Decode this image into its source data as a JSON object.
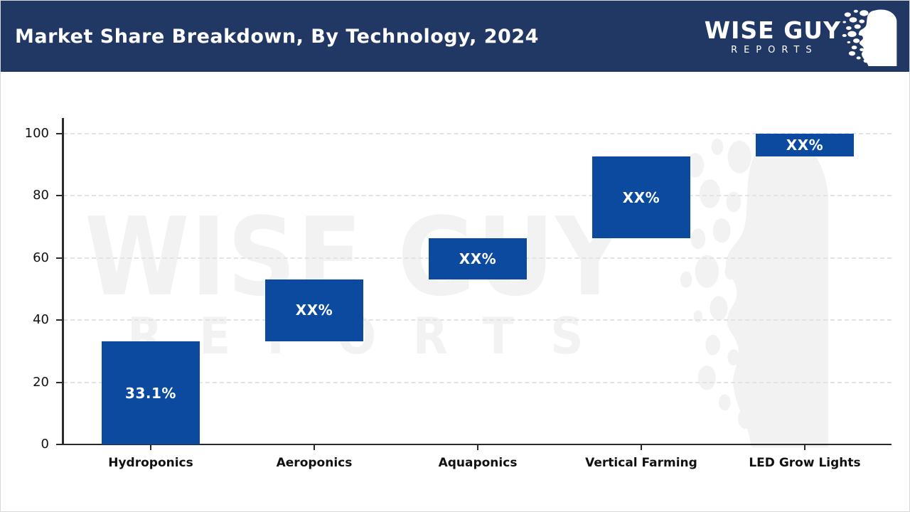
{
  "header": {
    "title": "Market Share Breakdown, By Technology, 2024",
    "logo": {
      "line1": "WISE GUY",
      "line2": "REPORTS"
    }
  },
  "watermark": {
    "line1": "WISE GUY",
    "line2": "REPORTS"
  },
  "colors": {
    "header_bg": "#223864",
    "title_text": "#ffffff",
    "logo_text": "#ffffff",
    "bar": "#0b4a9e",
    "bar_label": "#ffffff",
    "axis": "#2a2a2a",
    "grid": "#e3e3e3",
    "tick_label": "#111111",
    "category_label": "#111111",
    "watermark": "#f2f2f2",
    "canvas_border": "#d9d9d9"
  },
  "chart_data": {
    "type": "bar",
    "subtype": "waterfall",
    "title": "Market Share Breakdown, By Technology, 2024",
    "categories": [
      "Hydroponics",
      "Aeroponics",
      "Aquaponics",
      "Vertical Farming",
      "LED Grow Lights"
    ],
    "bars": [
      {
        "category": "Hydroponics",
        "start": 0,
        "end": 33.1,
        "value": 33.1,
        "label": "33.1%"
      },
      {
        "category": "Aeroponics",
        "start": 33.1,
        "end": 53.1,
        "value": 20.0,
        "label": "XX%"
      },
      {
        "category": "Aquaponics",
        "start": 53.1,
        "end": 66.2,
        "value": 13.1,
        "label": "XX%"
      },
      {
        "category": "Vertical Farming",
        "start": 66.2,
        "end": 92.5,
        "value": 26.3,
        "label": "XX%"
      },
      {
        "category": "LED Grow Lights",
        "start": 92.5,
        "end": 100.0,
        "value": 7.5,
        "label": "XX%"
      }
    ],
    "y_ticks": [
      0,
      20,
      40,
      60,
      80,
      100
    ],
    "ylim": [
      0,
      100
    ],
    "xlabel": "",
    "ylabel": "",
    "grid": "horizontal-dashed",
    "legend": null
  }
}
